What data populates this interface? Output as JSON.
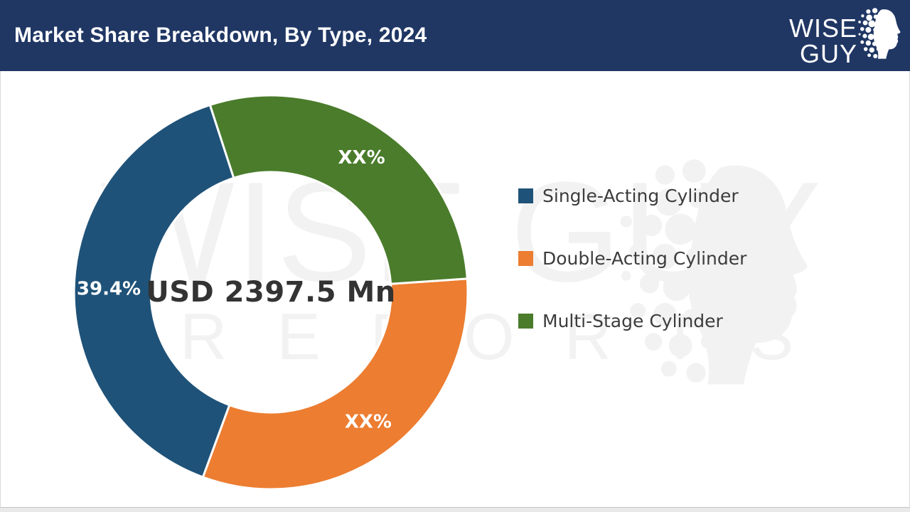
{
  "header": {
    "title": "Market Share Breakdown, By Type, 2024",
    "logo": {
      "line1": "WISE GUY",
      "line2": "REPORTS"
    }
  },
  "watermark": {
    "line1": "WISE GUY",
    "line2": "REPORTS"
  },
  "colors": {
    "header_bg": "#203764",
    "single_acting": "#1F5278",
    "double_acting": "#EC7D31",
    "multi_stage": "#4A7C2B",
    "slice_label": "#ffffff",
    "legend_text": "#3c3c3c",
    "watermark": "#f2f2f2"
  },
  "chart_data": {
    "type": "pie",
    "subtype": "donut",
    "title": "Market Share Breakdown, By Type, 2024",
    "center_label": "USD 2397.5 Mn",
    "start_angle_deg": 108,
    "direction": "counterclockwise",
    "inner_radius_ratio": 0.61,
    "legend_position": "right",
    "series": [
      {
        "name": "Single-Acting Cylinder",
        "value": 39.4,
        "label": "39.4%",
        "color": "#1F5278"
      },
      {
        "name": "Double-Acting Cylinder",
        "value": 31.7,
        "label": "XX%",
        "color": "#EC7D31"
      },
      {
        "name": "Multi-Stage Cylinder",
        "value": 28.9,
        "label": "XX%",
        "color": "#4A7C2B"
      }
    ]
  }
}
